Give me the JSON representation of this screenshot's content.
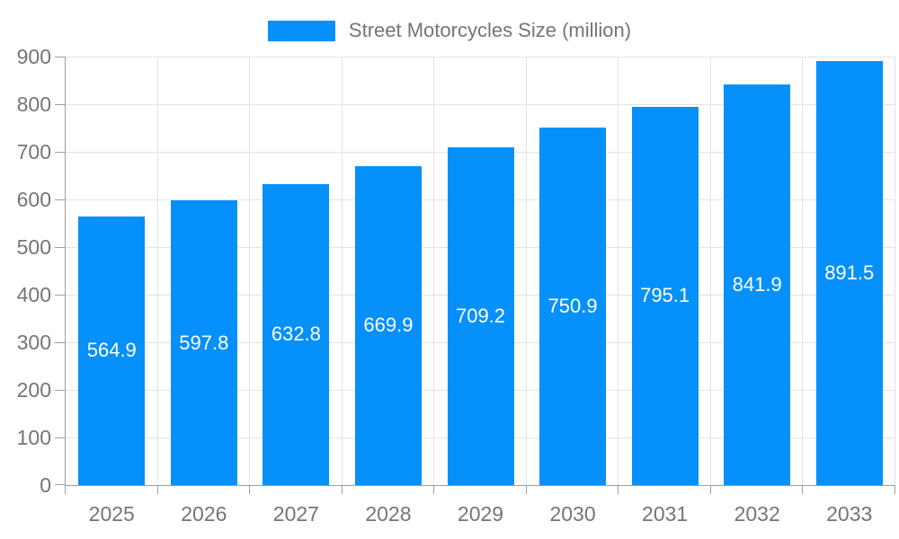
{
  "legend": {
    "label": "Street Motorcycles Size (million)"
  },
  "chart_data": {
    "type": "bar",
    "title": "",
    "xlabel": "",
    "ylabel": "",
    "categories": [
      "2025",
      "2026",
      "2027",
      "2028",
      "2029",
      "2030",
      "2031",
      "2032",
      "2033"
    ],
    "values": [
      564.9,
      597.8,
      632.8,
      669.9,
      709.2,
      750.9,
      795.1,
      841.9,
      891.5
    ],
    "series_name": "Street Motorcycles Size (million)",
    "ylim": [
      0,
      900
    ],
    "yticks": [
      0,
      100,
      200,
      300,
      400,
      500,
      600,
      700,
      800,
      900
    ],
    "grid": true,
    "legend_position": "top",
    "value_label_position": "inside-center"
  },
  "colors": {
    "bar": "#0590FA",
    "axis": "#9E9E9E",
    "gridline": "#E3E3E3",
    "tick_label": "#757575",
    "legend_text": "#757575",
    "value_label": "#FFFFFF",
    "background": "#FFFFFF"
  }
}
